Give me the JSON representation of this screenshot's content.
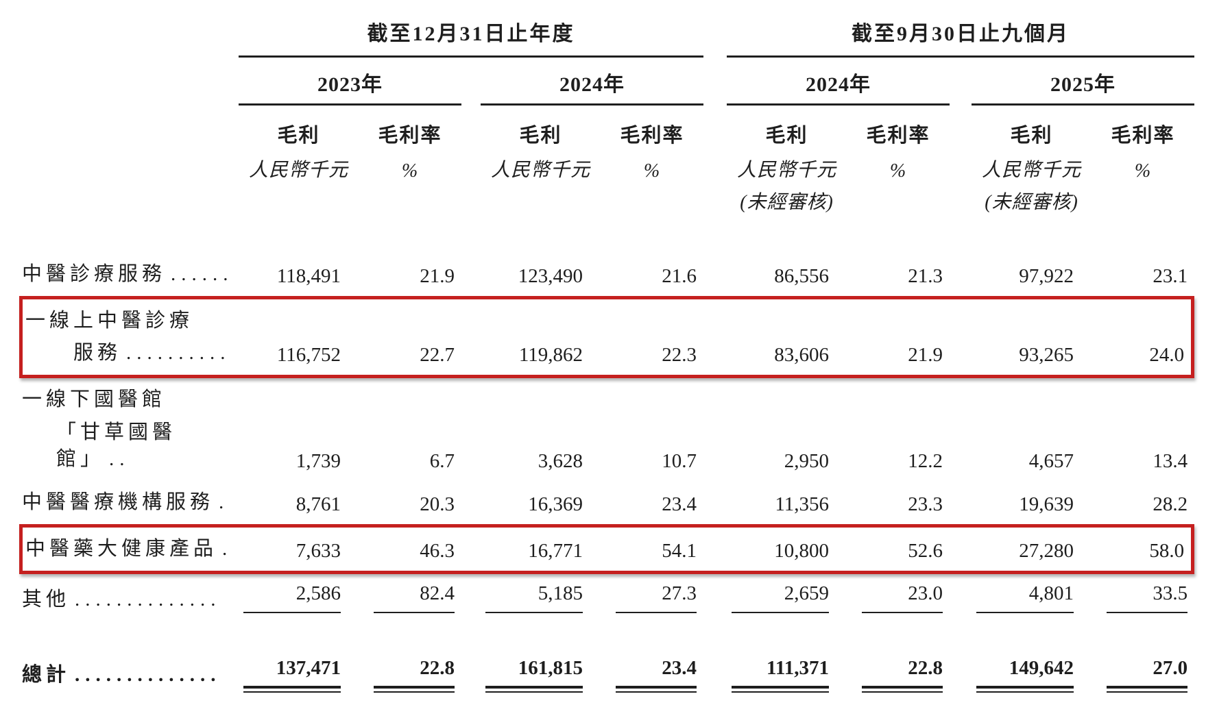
{
  "colors": {
    "highlight_box": "#c5201f",
    "text": "#1e1e1e"
  },
  "header": {
    "group1_title": "截至12月31日止年度",
    "group2_title": "截至9月30日止九個月",
    "year1": "2023年",
    "year2": "2024年",
    "year3": "2024年",
    "year4": "2025年",
    "gp_label": "毛利",
    "gm_label": "毛利率",
    "gp_unit": "人民幣千元",
    "gm_unit": "%",
    "unaudited": "(未經審核)"
  },
  "rows": {
    "r1": {
      "label": "中醫診療服務",
      "leader": "......",
      "v": [
        "118,491",
        "21.9",
        "123,490",
        "21.6",
        "86,556",
        "21.3",
        "97,922",
        "23.1"
      ]
    },
    "r2": {
      "label1": "一線上中醫診療",
      "label2": "服務",
      "leader": "..........",
      "v": [
        "116,752",
        "22.7",
        "119,862",
        "22.3",
        "83,606",
        "21.9",
        "93,265",
        "24.0"
      ]
    },
    "r3": {
      "label1": "一線下國醫館",
      "label2": "「甘草國醫館」",
      "leader": "..",
      "v": [
        "1,739",
        "6.7",
        "3,628",
        "10.7",
        "2,950",
        "12.2",
        "4,657",
        "13.4"
      ]
    },
    "r4": {
      "label": "中醫醫療機構服務",
      "leader": ".",
      "v": [
        "8,761",
        "20.3",
        "16,369",
        "23.4",
        "11,356",
        "23.3",
        "19,639",
        "28.2"
      ]
    },
    "r5": {
      "label": "中醫藥大健康產品",
      "leader": ".",
      "v": [
        "7,633",
        "46.3",
        "16,771",
        "54.1",
        "10,800",
        "52.6",
        "27,280",
        "58.0"
      ]
    },
    "r6": {
      "label": "其他",
      "leader": "..............",
      "v": [
        "2,586",
        "82.4",
        "5,185",
        "27.3",
        "2,659",
        "23.0",
        "4,801",
        "33.5"
      ]
    },
    "total": {
      "label": "總計",
      "leader": "..............",
      "v": [
        "137,471",
        "22.8",
        "161,815",
        "23.4",
        "111,371",
        "22.8",
        "149,642",
        "27.0"
      ]
    }
  }
}
